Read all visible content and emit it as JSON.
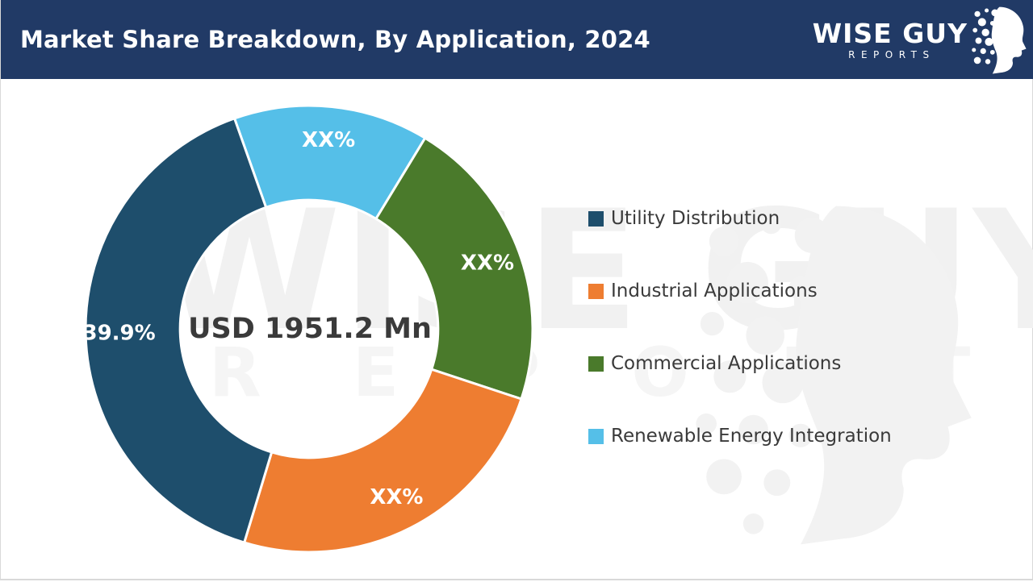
{
  "header": {
    "title": "Market Share Breakdown, By Application, 2024",
    "bg_color": "#213a66",
    "logo": {
      "line1": "WISE GUY",
      "line2": "REPORTS"
    }
  },
  "watermark": {
    "line1": "WISE GUY",
    "line2": "R E P O R T S"
  },
  "chart_data": {
    "type": "pie",
    "subtype": "donut",
    "title": "Market Share Breakdown, By Application, 2024",
    "center_label": "USD 1951.2 Mn",
    "legend_position": "right",
    "inner_radius_ratio": 0.577,
    "start_angle_clockwise_from_top_deg": -19.5,
    "clockwise_order": [
      "Renewable Energy Integration",
      "Commercial Applications",
      "Industrial Applications",
      "Utility Distribution"
    ],
    "segments": [
      {
        "label": "Utility Distribution",
        "display_value": "39.9%",
        "pct_estimate": 39.9,
        "color": "#1e4e6c",
        "value_text_color": "#ffffff"
      },
      {
        "label": "Industrial Applications",
        "display_value": "XX%",
        "pct_estimate": 24.6,
        "color": "#ee7d31",
        "value_text_color": "#ffffff"
      },
      {
        "label": "Commercial Applications",
        "display_value": "XX%",
        "pct_estimate": 21.4,
        "color": "#4a7a2b",
        "value_text_color": "#ffffff"
      },
      {
        "label": "Renewable Energy Integration",
        "display_value": "XX%",
        "pct_estimate": 14.1,
        "color": "#55bfe8",
        "value_text_color": "#ffffff"
      }
    ]
  }
}
